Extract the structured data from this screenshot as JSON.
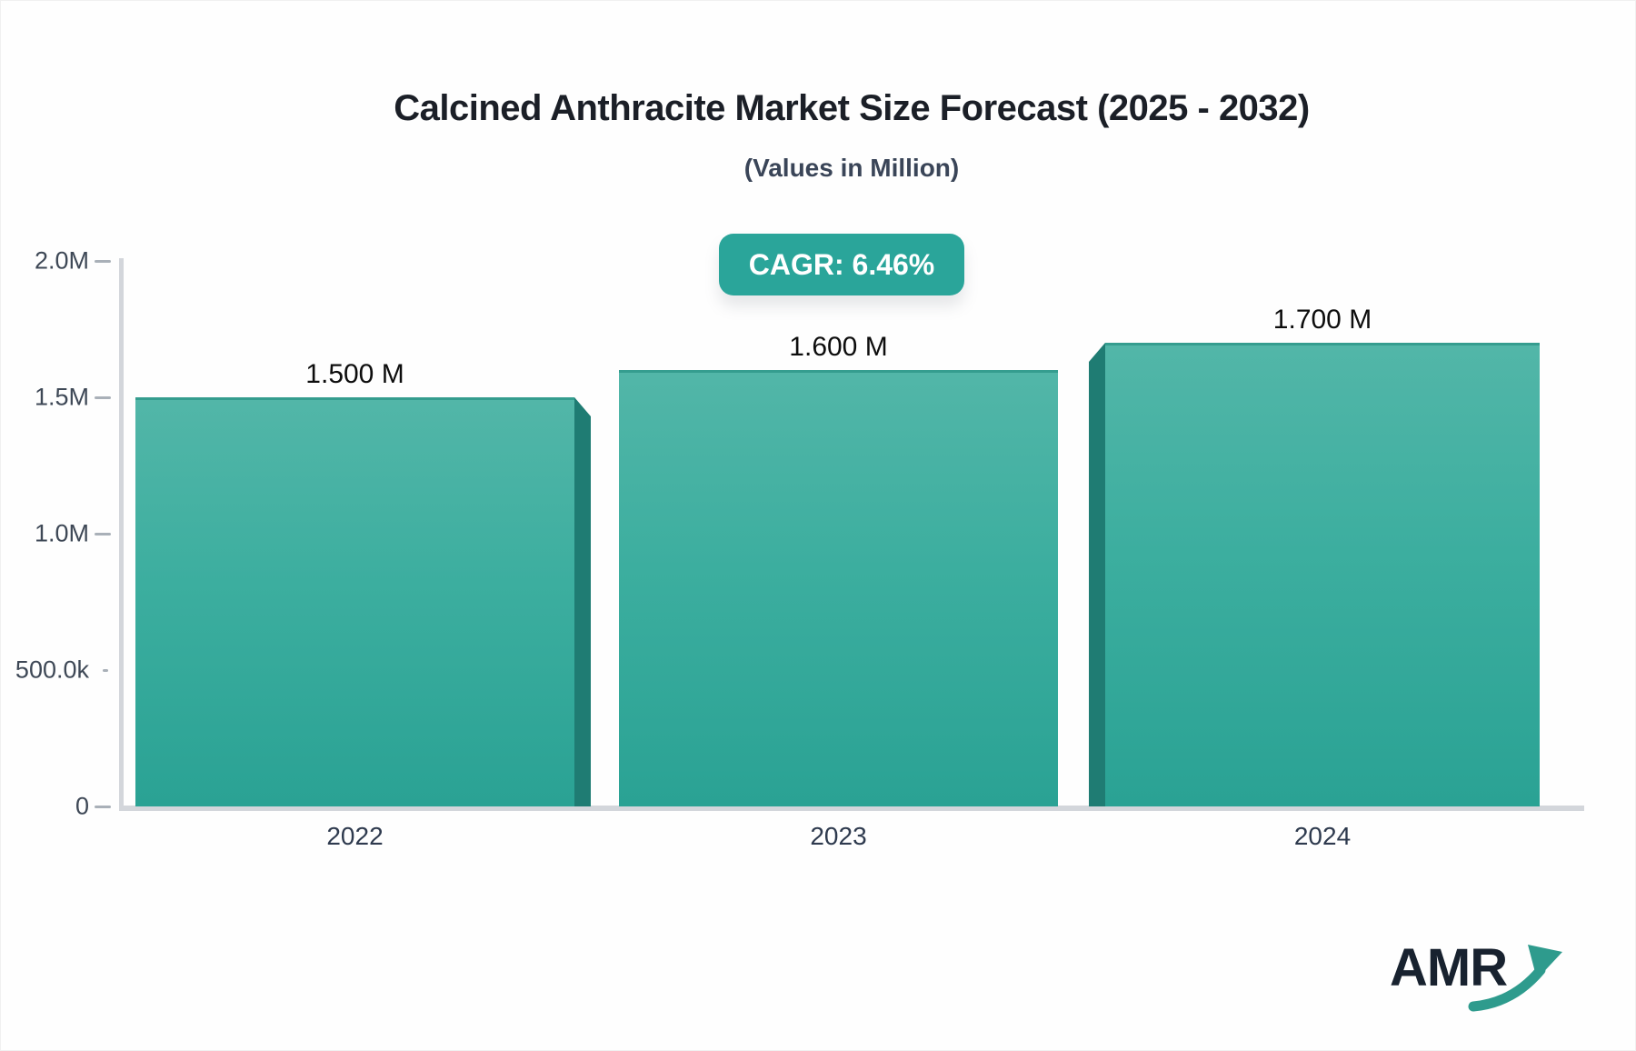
{
  "header": {
    "title": "Calcined Anthracite Market Size Forecast (2025 - 2032)",
    "subtitle": "(Values in Million)"
  },
  "badge": {
    "label": "CAGR: 6.46%"
  },
  "logo": {
    "text": "AMR",
    "icon": "growth-arrow-icon"
  },
  "colors": {
    "bar_gradient_top": "#52b6a8",
    "bar_gradient_bottom": "#2aa294",
    "bar_side_shadow": "#1f7c73",
    "badge_background": "#2aa59a",
    "axis_line": "#d3d6db",
    "title_text": "#1b1f27",
    "tick_text": "#3e4856"
  },
  "chart_data": {
    "type": "bar",
    "title": "Calcined Anthracite Market Size Forecast (2025 - 2032)",
    "subtitle": "(Values in Million)",
    "annotation": "CAGR: 6.46%",
    "categories": [
      "2022",
      "2023",
      "2024"
    ],
    "values": [
      1500000,
      1600000,
      1700000
    ],
    "value_labels": [
      "1.500 M",
      "1.600 M",
      "1.700 M"
    ],
    "y_ticks": [
      "2.0M",
      "1.5M",
      "1.0M",
      "500.0k",
      "0"
    ],
    "y_tick_values": [
      2000000,
      1500000,
      1000000,
      500000,
      0
    ],
    "ylim": [
      0,
      2000000
    ],
    "xlabel": "",
    "ylabel": "",
    "grid": "off",
    "legend": "none",
    "bar_style": "3d-extruded-teal"
  }
}
